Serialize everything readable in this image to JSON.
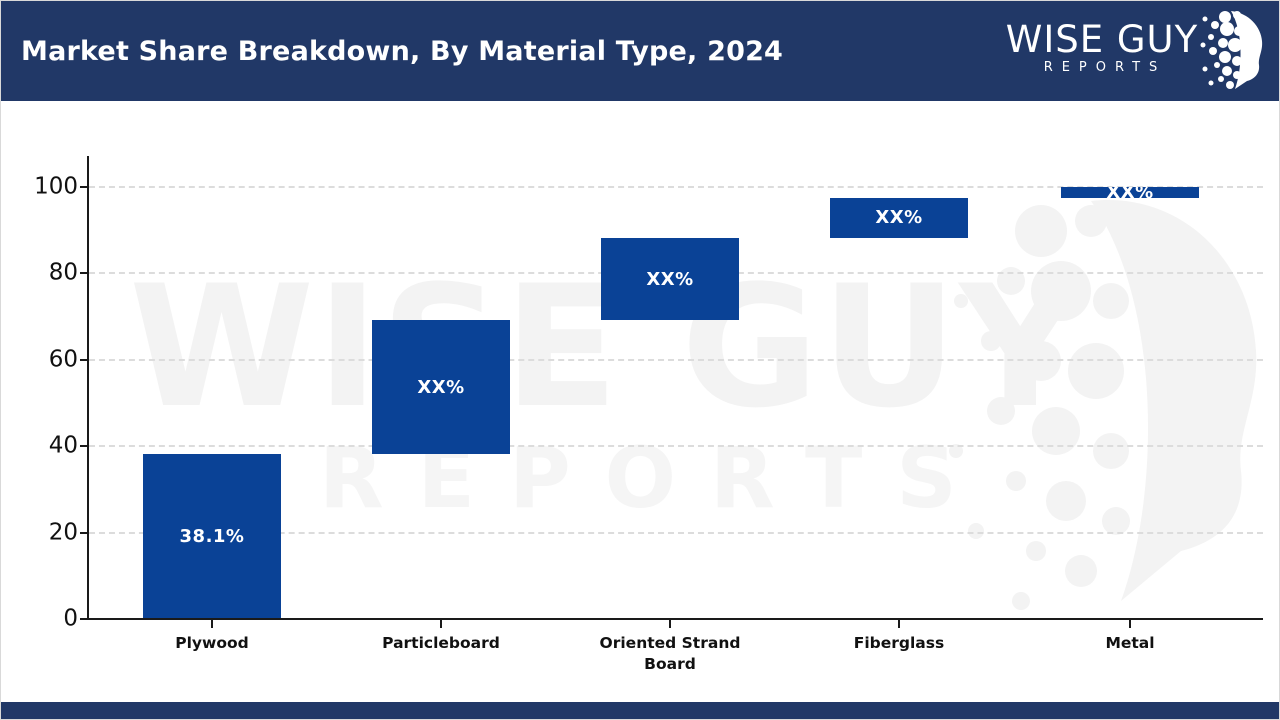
{
  "header": {
    "title": "Market Share Breakdown, By Material Type, 2024",
    "logo": {
      "line1": "WISE GUY",
      "line2": "REPORTS"
    }
  },
  "watermark": {
    "line1": "WISE GUY",
    "line2": "REPORTS"
  },
  "colors": {
    "header_navy": "#213867",
    "bar_blue": "#0a4296",
    "gridline_gray": "#dcdcdc",
    "axis_black": "#1a1a1a",
    "watermark_gray": "#f3f3f3",
    "label_white": "#ffffff"
  },
  "chart_data": {
    "type": "bar",
    "subtype": "waterfall",
    "title": "Market Share Breakdown, By Material Type, 2024",
    "xlabel": "",
    "ylabel": "",
    "ylim": [
      0,
      105
    ],
    "yticks": [
      0,
      20,
      40,
      60,
      80,
      100
    ],
    "grid": "horizontal dashed",
    "legend": "none",
    "bar_color": "#0a4296",
    "categories": [
      "Plywood",
      "Particleboard",
      "Oriented Strand Board",
      "Fiberglass",
      "Metal"
    ],
    "bars": [
      {
        "category": "Plywood",
        "base": 0,
        "top": 38.1,
        "segment": 38.1,
        "label": "38.1%"
      },
      {
        "category": "Particleboard",
        "base": 38.1,
        "top": 69.1,
        "segment": 31.0,
        "label": "XX%"
      },
      {
        "category": "Oriented Strand Board",
        "base": 69.1,
        "top": 88.2,
        "segment": 19.1,
        "label": "XX%"
      },
      {
        "category": "Fiberglass",
        "base": 88.2,
        "top": 97.5,
        "segment": 9.3,
        "label": "XX%"
      },
      {
        "category": "Metal",
        "base": 97.5,
        "top": 100,
        "segment": 2.5,
        "label": "XX%"
      }
    ]
  }
}
